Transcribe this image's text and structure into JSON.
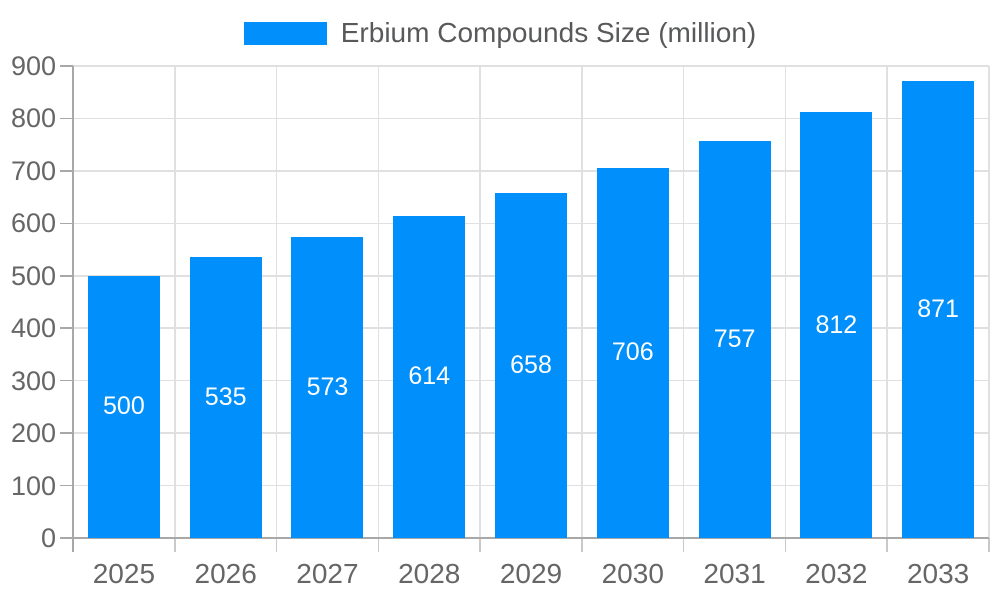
{
  "chart_data": {
    "type": "bar",
    "title": "Erbium Compounds Size (million)",
    "legend": {
      "position": "top",
      "label": "Erbium Compounds Size (million)"
    },
    "series_name": "Erbium Compounds Size (million)",
    "categories": [
      "2025",
      "2026",
      "2027",
      "2028",
      "2029",
      "2030",
      "2031",
      "2032",
      "2033"
    ],
    "values": [
      500,
      535,
      573,
      614,
      658,
      706,
      757,
      812,
      871
    ],
    "xlabel": "",
    "ylabel": "",
    "ylim": [
      0,
      900
    ],
    "ytick_step": 100,
    "yticks": [
      0,
      100,
      200,
      300,
      400,
      500,
      600,
      700,
      800,
      900
    ],
    "grid": true,
    "data_labels": "centered-white",
    "colors": {
      "bar": "#008FFB",
      "bar_label": "#ffffff",
      "gridline": "#e0e0e0",
      "axis_line": "#a8a8a8",
      "tick": "#c9c9c9",
      "axis_label": "#666666",
      "legend_text": "#58595b"
    }
  }
}
